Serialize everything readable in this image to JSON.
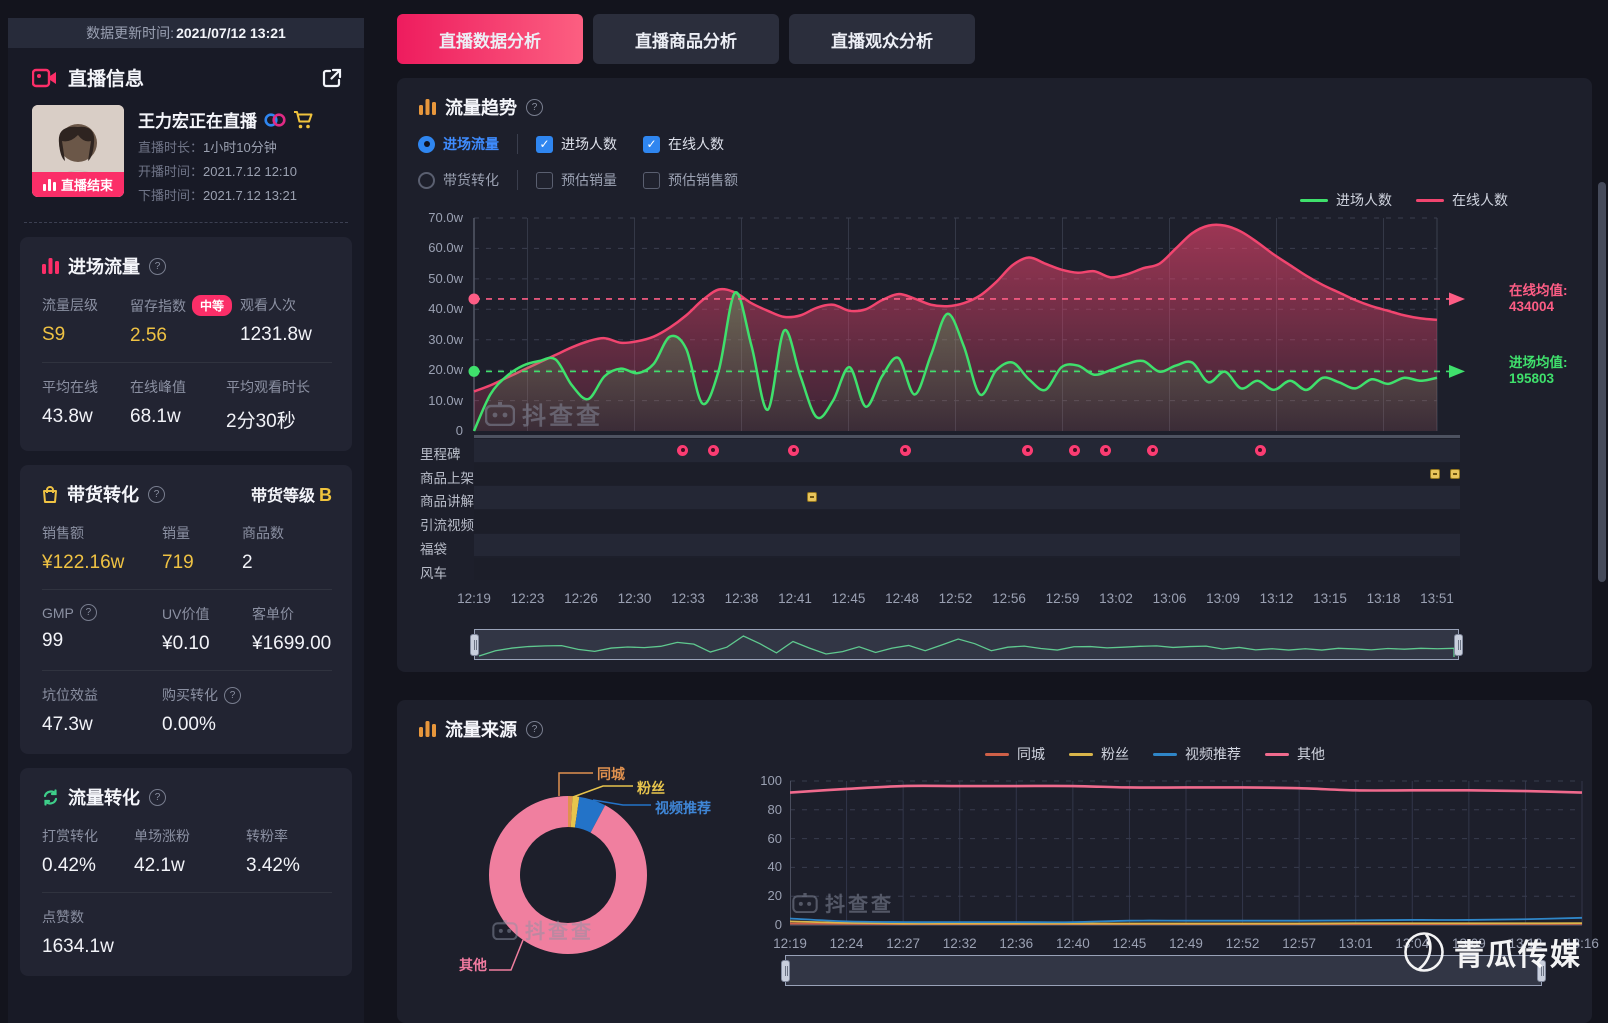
{
  "colors": {
    "accent_pink": "#fb2e68",
    "tab_gradient_from": "#ee1c5e",
    "tab_gradient_to": "#fc5f81",
    "yellow": "#efc243",
    "blue": "#2f86f0",
    "green_line": "#3fe06c",
    "pink_line": "#f1456f",
    "brush_line": "#5fc98f"
  },
  "meta": {
    "update_label": "数据更新时间:",
    "update_time": "2021/07/12 13:21"
  },
  "sidebar": {
    "live_info": {
      "title": "直播信息",
      "name": "王力宏正在直播",
      "status_badge": "直播结束",
      "rows": [
        {
          "label": "直播时长：",
          "value": "1小时10分钟"
        },
        {
          "label": "开播时间：",
          "value": "2021.7.12 12:10"
        },
        {
          "label": "下播时间：",
          "value": "2021.7.12 13:21"
        }
      ]
    },
    "entry_traffic": {
      "title": "进场流量",
      "stats1": [
        {
          "label": "流量层级",
          "value": "S9"
        },
        {
          "label": "留存指数",
          "value": "2.56",
          "badge": "中等"
        },
        {
          "label": "观看人次",
          "value": "1231.8w"
        }
      ],
      "stats2": [
        {
          "label": "平均在线",
          "value": "43.8w"
        },
        {
          "label": "在线峰值",
          "value": "68.1w"
        },
        {
          "label": "平均观看时长",
          "value": "2分30秒"
        }
      ]
    },
    "goods_conversion": {
      "title": "带货转化",
      "grade_label": "带货等级",
      "grade": "B",
      "stats1": [
        {
          "label": "销售额",
          "value": "¥122.16w"
        },
        {
          "label": "销量",
          "value": "719"
        },
        {
          "label": "商品数",
          "value": "2"
        }
      ],
      "stats2": [
        {
          "label": "GMP",
          "value": "99"
        },
        {
          "label": "UV价值",
          "value": "¥0.10"
        },
        {
          "label": "客单价",
          "value": "¥1699.00"
        }
      ],
      "stats3": [
        {
          "label": "坑位效益",
          "value": "47.3w"
        },
        {
          "label": "购买转化",
          "value": "0.00%"
        }
      ]
    },
    "traffic_conversion": {
      "title": "流量转化",
      "stats1": [
        {
          "label": "打赏转化",
          "value": "0.42%"
        },
        {
          "label": "单场涨粉",
          "value": "42.1w"
        },
        {
          "label": "转粉率",
          "value": "3.42%"
        }
      ],
      "stats2": [
        {
          "label": "点赞数",
          "value": "1634.1w"
        }
      ]
    }
  },
  "tabs": [
    {
      "label": "直播数据分析",
      "active": true
    },
    {
      "label": "直播商品分析",
      "active": false
    },
    {
      "label": "直播观众分析",
      "active": false
    }
  ],
  "watermark_text": "抖查查",
  "brand_text": "青瓜传媒",
  "trend": {
    "title": "流量趋势",
    "radio_selected": "进场流量",
    "radio_unselected": "带货转化",
    "checkboxes_checked": [
      "进场人数",
      "在线人数"
    ],
    "checkboxes_unchecked": [
      "预估销量",
      "预估销售额"
    ],
    "chart_data": {
      "type": "area",
      "x_ticks": [
        "12:19",
        "12:23",
        "12:26",
        "12:30",
        "12:33",
        "12:38",
        "12:41",
        "12:45",
        "12:48",
        "12:52",
        "12:56",
        "12:59",
        "13:02",
        "13:06",
        "13:09",
        "13:12",
        "13:15",
        "13:18",
        "13:51"
      ],
      "y_ticks": [
        "70.0w",
        "60.0w",
        "50.0w",
        "40.0w",
        "30.0w",
        "20.0w",
        "10.0w",
        "0"
      ],
      "ylim": [
        0,
        70
      ],
      "unit": "w",
      "legend_position": "top-right",
      "series": [
        {
          "name": "在线人数",
          "color": "#f1456f",
          "values": [
            13,
            15,
            17.5,
            20,
            22.5,
            25,
            27.5,
            29.5,
            30.5,
            29,
            29.5,
            31,
            34,
            38,
            43,
            46.5,
            45.5,
            42,
            39.5,
            37.5,
            38,
            40.5,
            41.5,
            39.5,
            40,
            43,
            45,
            43.5,
            41.5,
            41,
            42,
            44.5,
            49,
            54.5,
            57,
            55,
            53,
            52,
            52.5,
            50.5,
            51.5,
            53.5,
            55,
            60,
            65,
            67.5,
            67.5,
            65.5,
            62,
            58,
            54.5,
            51,
            48,
            45.5,
            43,
            41,
            39.5,
            38,
            37,
            36.5
          ]
        },
        {
          "name": "进场人数",
          "color": "#3fe06c",
          "values": [
            0,
            12,
            18,
            21.5,
            23,
            23.5,
            15,
            10.5,
            18,
            20.5,
            19,
            22,
            31,
            27,
            9,
            20,
            45.5,
            28,
            7,
            33,
            18,
            4.5,
            10,
            21,
            8,
            18,
            24,
            12,
            25,
            38.5,
            28,
            12,
            20,
            22.5,
            17,
            13.5,
            21,
            21.5,
            18.5,
            20,
            22,
            23,
            19.5,
            21.5,
            22.5,
            16,
            19.5,
            14,
            16.5,
            13.5,
            16.5,
            13.5,
            17.5,
            16,
            14,
            17,
            15.5,
            17.5,
            16.5,
            17.5
          ]
        }
      ],
      "avg_lines": [
        {
          "label": "在线均值:",
          "value": "434004",
          "w": 43.4,
          "color": "#fd5d85"
        },
        {
          "label": "进场均值:",
          "value": "195803",
          "w": 19.58,
          "color": "#3fe06c"
        }
      ]
    },
    "milestones": {
      "rows": [
        {
          "label": "里程碑",
          "type": "milestone",
          "markers": [
            0.211,
            0.242,
            0.324,
            0.437,
            0.561,
            0.609,
            0.64,
            0.688,
            0.797
          ]
        },
        {
          "label": "商品上架",
          "type": "product",
          "markers": [
            0.975,
            0.995
          ]
        },
        {
          "label": "商品讲解",
          "type": "product",
          "markers": [
            0.343
          ]
        },
        {
          "label": "引流视频",
          "type": "product",
          "markers": []
        },
        {
          "label": "福袋",
          "type": "product",
          "markers": []
        },
        {
          "label": "风车",
          "type": "product",
          "markers": []
        }
      ]
    }
  },
  "source": {
    "title": "流量来源",
    "donut": {
      "type": "pie",
      "labels": [
        "同城",
        "粉丝",
        "视频推荐",
        "其他"
      ],
      "values": [
        0.9,
        1.4,
        5.5,
        92.2
      ],
      "colors": [
        "#e0914f",
        "#e7c44c",
        "#2373c8",
        "#f07f9f"
      ]
    },
    "chart_data": {
      "type": "line",
      "x_ticks": [
        "12:19",
        "12:24",
        "12:27",
        "12:32",
        "12:36",
        "12:40",
        "12:45",
        "12:49",
        "12:52",
        "12:57",
        "13:01",
        "13:04",
        "13:09",
        "13:12",
        "13:16"
      ],
      "y_ticks": [
        "100",
        "80",
        "60",
        "40",
        "20",
        "0"
      ],
      "ylim": [
        0,
        100
      ],
      "legend_position": "top",
      "series": [
        {
          "name": "同城",
          "color": "#cf6048",
          "values": [
            1,
            0.8,
            0.6,
            0.6,
            0.6,
            0.6,
            0.6,
            0.6,
            0.6,
            0.6,
            0.6,
            0.6,
            0.6,
            0.7,
            0.8
          ]
        },
        {
          "name": "粉丝",
          "color": "#d9b54a",
          "values": [
            2.5,
            1.5,
            1,
            1,
            1,
            1,
            1,
            1,
            1,
            1,
            1.2,
            1.2,
            1.2,
            1.2,
            1.3
          ]
        },
        {
          "name": "视频推荐",
          "color": "#2f86c8",
          "values": [
            4.5,
            2.5,
            2,
            2,
            2,
            2,
            3,
            3,
            3,
            3,
            3.2,
            3.5,
            3.5,
            4,
            5
          ]
        },
        {
          "name": "其他",
          "color": "#f06a8d",
          "values": [
            92,
            94.5,
            96.5,
            96.5,
            96.5,
            96.5,
            95.5,
            95.5,
            95.5,
            95,
            93.5,
            93.5,
            93.5,
            93,
            92
          ]
        }
      ]
    }
  }
}
